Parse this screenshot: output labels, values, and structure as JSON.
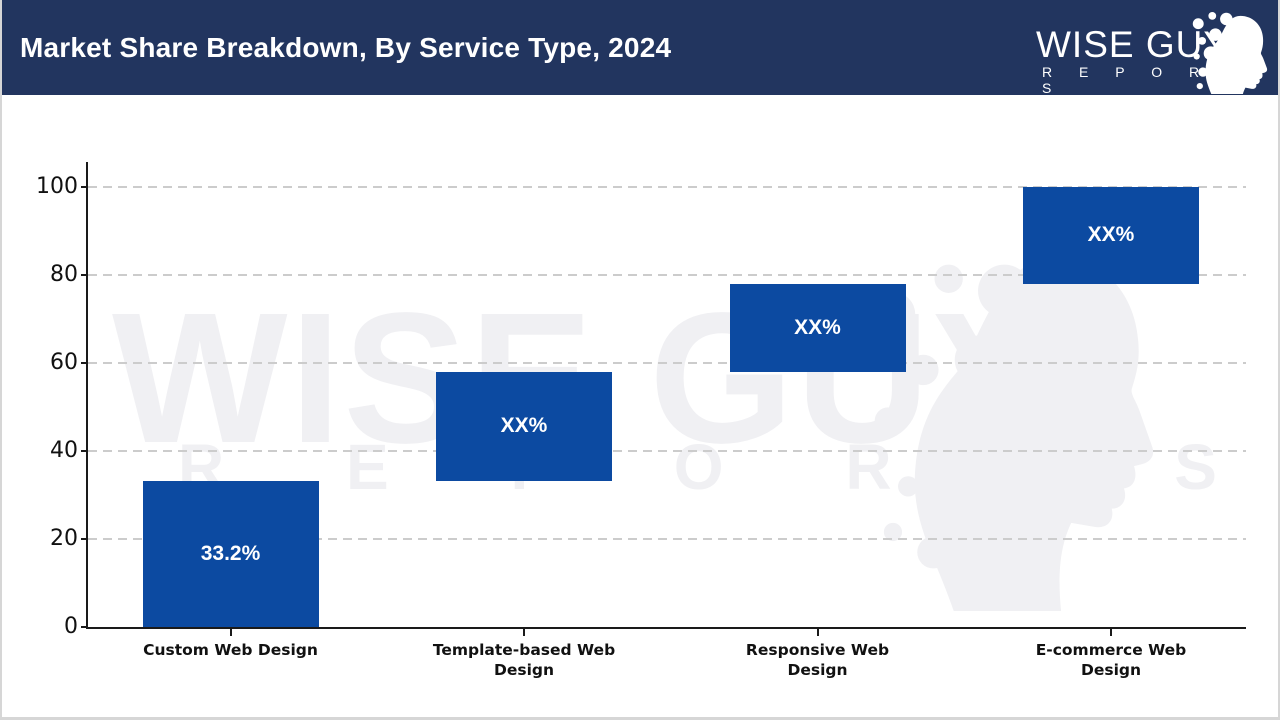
{
  "header": {
    "title": "Market Share Breakdown, By Service Type, 2024",
    "bg_color": "#22355f",
    "logo": {
      "line1": "WISE GUY",
      "line2": "R E P O R T S"
    }
  },
  "watermark": {
    "line1": "WISE GUY",
    "line2": "R E P O R T S"
  },
  "chart_data": {
    "type": "bar",
    "subtype": "waterfall-floating-bars",
    "title": "Market Share Breakdown, By Service Type, 2024",
    "categories": [
      "Custom Web Design",
      "Template-based Web Design",
      "Responsive Web Design",
      "E-commerce Web Design"
    ],
    "categories_display": [
      "Custom Web Design",
      "Template-based Web\nDesign",
      "Responsive Web\nDesign",
      "E-commerce Web\nDesign"
    ],
    "series": [
      {
        "name": "Market share (%)",
        "segments": [
          {
            "start": 0,
            "end": 33.2,
            "value": 33.2,
            "label": "33.2%"
          },
          {
            "start": 33.2,
            "end": 58,
            "value": 24.8,
            "label": "XX%"
          },
          {
            "start": 58,
            "end": 78,
            "value": 20,
            "label": "XX%"
          },
          {
            "start": 78,
            "end": 100,
            "value": 22,
            "label": "XX%"
          }
        ]
      }
    ],
    "ylim": [
      0,
      100
    ],
    "yticks": [
      0,
      20,
      40,
      60,
      80,
      100
    ],
    "xlabel": "",
    "ylabel": "",
    "grid": "horizontal-dashed",
    "legend": "none",
    "bar_color": "#0c4aa1",
    "bar_label_color": "#ffffff",
    "grid_color": "#cccccc",
    "axis_color": "#1a1a1a",
    "watermark_color": "#f0f0f3"
  }
}
